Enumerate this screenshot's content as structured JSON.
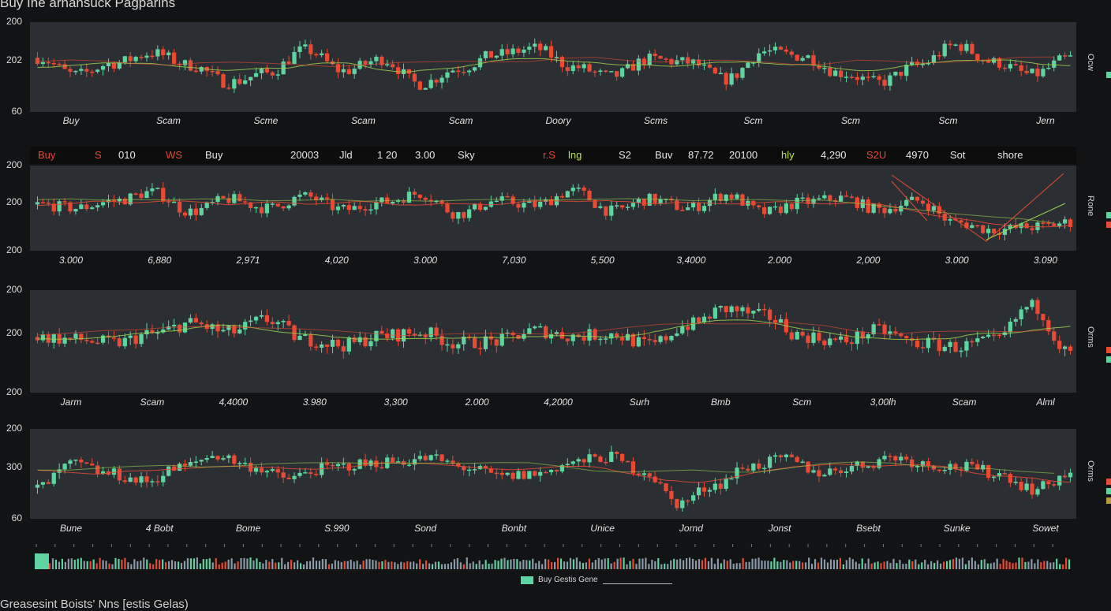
{
  "title": "Buy Ine arnansuck Pagparins",
  "footer": "Greasesint Boists' Nns [estis Gelas)",
  "colors": {
    "up": "#5fd4a0",
    "down": "#e84a33",
    "bg": "#121315",
    "panel": "#2b2e33",
    "trend_red": "#e84a33",
    "trend_green": "#9ad14a"
  },
  "ticker": [
    {
      "text": "Buy",
      "color": "#e8463a"
    },
    {
      "text": "S",
      "color": "#e8463a"
    },
    {
      "text": "010",
      "color": "#e6e6e6"
    },
    {
      "text": "WS",
      "color": "#e8463a"
    },
    {
      "text": "Buy",
      "color": "#e6e6e6"
    },
    {
      "text": "20003",
      "color": "#e6e6e6"
    },
    {
      "text": "Jld",
      "color": "#e6e6e6"
    },
    {
      "text": "1 20",
      "color": "#e6e6e6"
    },
    {
      "text": "3.00",
      "color": "#e6e6e6"
    },
    {
      "text": "Sky",
      "color": "#e6e6e6"
    },
    {
      "text": "r.S",
      "color": "#e8463a"
    },
    {
      "text": "lng",
      "color": "#b7e04a"
    },
    {
      "text": "S2",
      "color": "#e6e6e6"
    },
    {
      "text": "Buv",
      "color": "#e6e6e6"
    },
    {
      "text": "87.72",
      "color": "#e6e6e6"
    },
    {
      "text": "20100",
      "color": "#e6e6e6"
    },
    {
      "text": "hly",
      "color": "#b7e04a"
    },
    {
      "text": "4,290",
      "color": "#e6e6e6"
    },
    {
      "text": "S2U",
      "color": "#e8463a"
    },
    {
      "text": "4970",
      "color": "#e6e6e6"
    },
    {
      "text": "Sot",
      "color": "#e6e6e6"
    },
    {
      "text": "shore",
      "color": "#e6e6e6"
    }
  ],
  "legend": {
    "label": "Buy Gestis Gene"
  },
  "chart_data": [
    {
      "type": "candlestick",
      "y_tick_labels": [
        "200",
        "202",
        "60"
      ],
      "x_tick_labels": [
        "Buy",
        "Scam",
        "Scme",
        "Scam",
        "Scam",
        "Doory",
        "Scms",
        "Scm",
        "Scm",
        "Scm",
        "Jern"
      ],
      "right_label": "Ocw",
      "right_marks": [
        "#5fd4a0"
      ],
      "close": [
        0.62,
        0.4,
        0.55,
        0.68,
        0.52,
        0.3,
        0.42,
        0.72,
        0.45,
        0.6,
        0.28,
        0.48,
        0.66,
        0.74,
        0.5,
        0.38,
        0.6,
        0.56,
        0.34,
        0.7,
        0.64,
        0.42,
        0.3,
        0.52,
        0.78,
        0.56,
        0.4,
        0.62
      ]
    },
    {
      "type": "candlestick",
      "y_tick_labels": [
        "200",
        "200",
        "200"
      ],
      "x_tick_labels": [
        "3.000",
        "6,880",
        "2,971",
        "4,020",
        "3.000",
        "7,030",
        "5,500",
        "3,4000",
        "2.000",
        "2,000",
        "3.000",
        "3.090"
      ],
      "right_label": "Rone",
      "right_marks": [
        "#5fd4a0",
        "#e84a33"
      ],
      "close": [
        0.55,
        0.5,
        0.6,
        0.72,
        0.45,
        0.62,
        0.5,
        0.66,
        0.48,
        0.58,
        0.7,
        0.42,
        0.6,
        0.54,
        0.74,
        0.46,
        0.62,
        0.5,
        0.68,
        0.44,
        0.58,
        0.64,
        0.48,
        0.6,
        0.3,
        0.2,
        0.24,
        0.3
      ]
    },
    {
      "type": "candlestick",
      "y_tick_labels": [
        "200",
        "200",
        "200"
      ],
      "x_tick_labels": [
        "Jarm",
        "Scam",
        "4,4000",
        "3.980",
        "3,300",
        "2.000",
        "4,2000",
        "Surh",
        "Bmb",
        "Scm",
        "3,00lh",
        "Scam",
        "Alml"
      ],
      "right_label": "Orms",
      "right_marks": [
        "#e84a33",
        "#5fd4a0"
      ],
      "close": [
        0.55,
        0.52,
        0.48,
        0.58,
        0.7,
        0.6,
        0.74,
        0.52,
        0.46,
        0.56,
        0.6,
        0.48,
        0.5,
        0.62,
        0.56,
        0.58,
        0.46,
        0.68,
        0.86,
        0.78,
        0.56,
        0.5,
        0.62,
        0.48,
        0.44,
        0.5,
        0.9,
        0.36
      ]
    },
    {
      "type": "candlestick",
      "y_tick_labels": [
        "200",
        "300",
        "60"
      ],
      "x_tick_labels": [
        "Bune",
        "4 Bobt",
        "Bome",
        "S.990",
        "Sond",
        "Bonbt",
        "Unice",
        "Jornd",
        "Jonst",
        "Bsebt",
        "Sunke",
        "Sowet"
      ],
      "right_label": "Orms",
      "right_marks": [
        "#e84a33",
        "#5fd4a0",
        "#b79a3a"
      ],
      "close": [
        0.32,
        0.62,
        0.5,
        0.4,
        0.58,
        0.74,
        0.6,
        0.44,
        0.56,
        0.62,
        0.66,
        0.7,
        0.58,
        0.46,
        0.5,
        0.64,
        0.72,
        0.54,
        0.12,
        0.36,
        0.6,
        0.68,
        0.52,
        0.6,
        0.72,
        0.62,
        0.58,
        0.5,
        0.3,
        0.5
      ]
    }
  ],
  "volume": {
    "type": "bar",
    "series_colors": [
      "#8a9aa8",
      "#5fd4a0",
      "#e84a33"
    ]
  }
}
